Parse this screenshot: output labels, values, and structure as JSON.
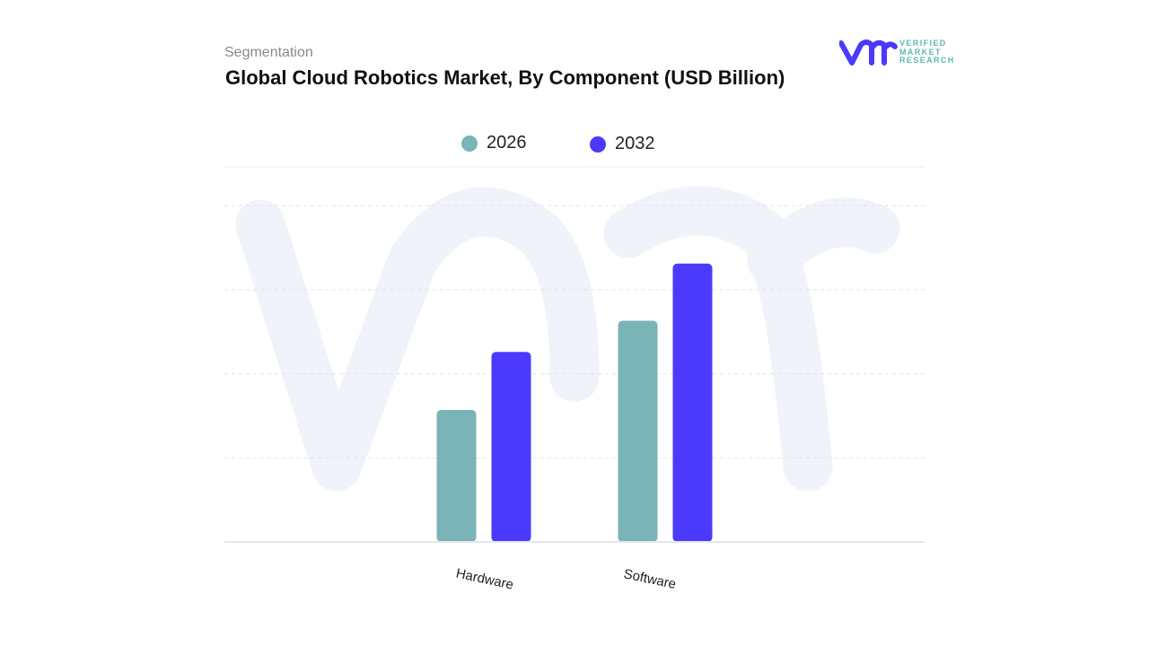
{
  "header": {
    "subtitle": "Segmentation",
    "title": "Global Cloud Robotics Market, By Component (USD Billion)"
  },
  "logo": {
    "text": "VERIFIED MARKET RESEARCH",
    "line1": "VERIFIED",
    "line2": "MARKET",
    "line3": "RESEARCH",
    "mark": "vmr"
  },
  "colors": {
    "series_2026": "#7ab4b7",
    "series_2032": "#4b3afb",
    "watermark": "#f1f3fb",
    "grid": "#e3e3e3"
  },
  "chart_data": {
    "type": "bar",
    "title": "Global Cloud Robotics Market, By Component (USD Billion)",
    "xlabel": "",
    "ylabel": "",
    "categories": [
      "Hardware",
      "Software"
    ],
    "series": [
      {
        "name": "2026",
        "values": [
          1.57,
          2.63
        ]
      },
      {
        "name": "2032",
        "values": [
          2.26,
          3.31
        ]
      }
    ],
    "ylim": [
      0,
      4.46
    ],
    "y_tick_labels_shown": false,
    "grid": true,
    "legend": "top-center"
  }
}
